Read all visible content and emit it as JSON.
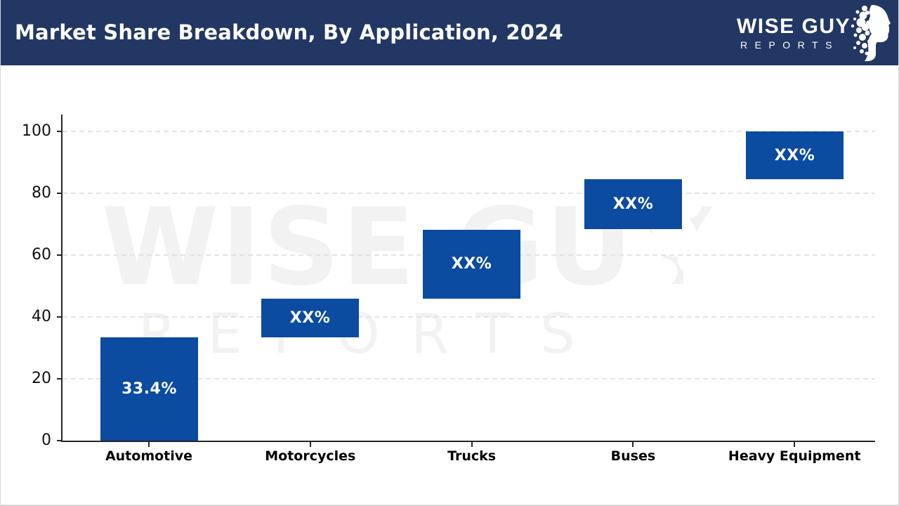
{
  "header": {
    "title": "Market Share Breakdown, By Application, 2024",
    "logo_line1": "WISE GUY",
    "logo_line2": "REPORTS"
  },
  "watermark": {
    "line1": "WISE GUY",
    "line2": "REPORTS"
  },
  "chart_data": {
    "type": "bar",
    "subtype": "waterfall",
    "title": "Market Share Breakdown, By Application, 2024",
    "categories": [
      "Automotive",
      "Motorcycles",
      "Trucks",
      "Buses",
      "Heavy Equipment"
    ],
    "segments": [
      {
        "category": "Automotive",
        "start": 0,
        "end": 33.4,
        "label": "33.4%"
      },
      {
        "category": "Motorcycles",
        "start": 33.4,
        "end": 46,
        "label": "XX%"
      },
      {
        "category": "Trucks",
        "start": 46,
        "end": 68.3,
        "label": "XX%"
      },
      {
        "category": "Buses",
        "start": 68.3,
        "end": 84.5,
        "label": "XX%"
      },
      {
        "category": "Heavy Equipment",
        "start": 84.5,
        "end": 100,
        "label": "XX%"
      }
    ],
    "xlabel": "",
    "ylabel": "",
    "yticks": [
      0,
      20,
      40,
      60,
      80,
      100
    ],
    "ylim": [
      0,
      105
    ],
    "grid": "horizontal-dashed",
    "legend": "none",
    "colors": {
      "bar": "#0b4ba0",
      "bar_label": "#ffffff",
      "grid": "#e3e3e3",
      "axis": "#262626",
      "header_bg": "#223764",
      "watermark": "#f2f2f2"
    }
  }
}
